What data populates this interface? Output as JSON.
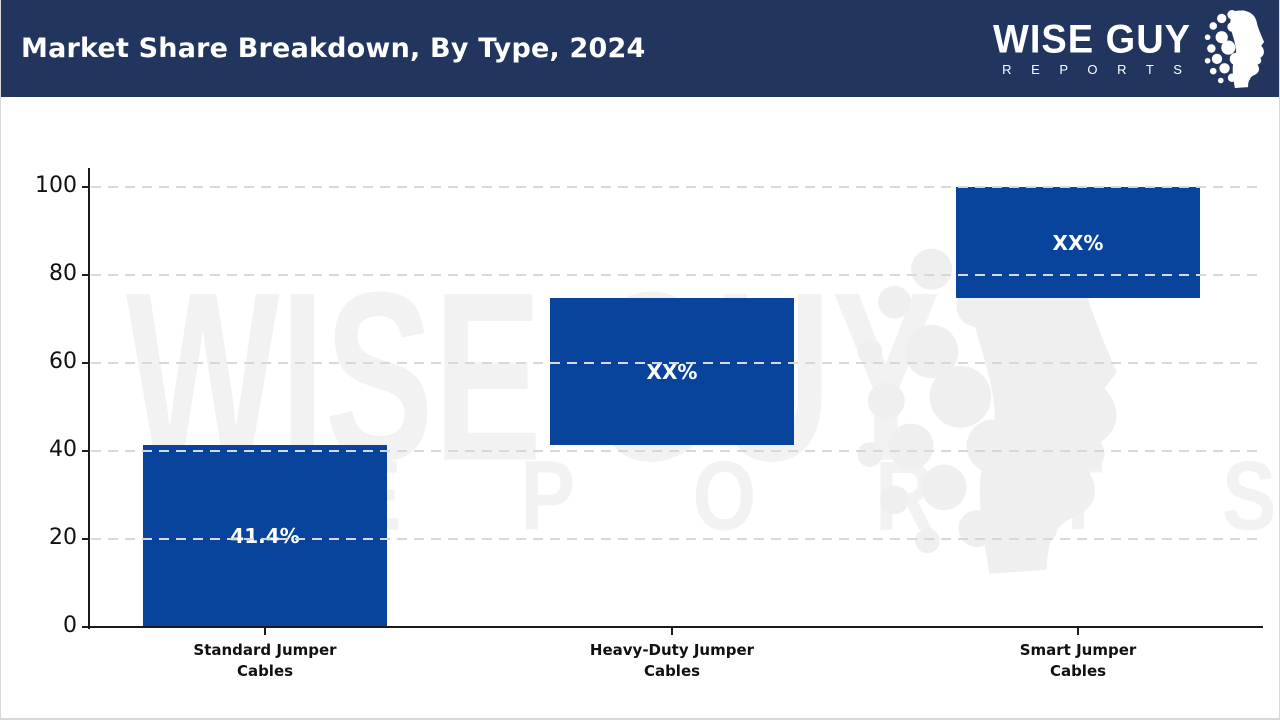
{
  "header": {
    "title": "Market Share Breakdown, By Type, 2024",
    "logo": {
      "line1": "WISE GUY",
      "line2": "R E P O R T S",
      "icon": "dotted-head-profile"
    }
  },
  "watermark": {
    "line1": "WISE GUY",
    "line2": "R E P O R T S",
    "icon": "dotted-head-profile"
  },
  "colors": {
    "header_bg": "#22355e",
    "bar": "#08449b",
    "bar_label": "#ffffff",
    "grid": "#d8d8d8",
    "axis": "#1a1a1a",
    "watermark": "#f2f2f2"
  },
  "chart_data": {
    "type": "bar",
    "variant": "waterfall",
    "title": "Market Share Breakdown, By Type, 2024",
    "categories": [
      {
        "line1": "Standard Jumper",
        "line2": "Cables"
      },
      {
        "line1": "Heavy-Duty Jumper",
        "line2": "Cables"
      },
      {
        "line1": "Smart Jumper",
        "line2": "Cables"
      }
    ],
    "bars": [
      {
        "name": "Standard Jumper Cables",
        "display_label": "41.4%",
        "start": 0,
        "end": 41.4,
        "value": 41.4
      },
      {
        "name": "Heavy-Duty Jumper Cables",
        "display_label": "XX%",
        "start": 41.4,
        "end": 74.7,
        "value": 33.3
      },
      {
        "name": "Smart Jumper Cables",
        "display_label": "XX%",
        "start": 74.7,
        "end": 100,
        "value": 25.3
      }
    ],
    "xlabel": "",
    "ylabel": "",
    "ylim": [
      0,
      100
    ],
    "yticks": [
      "0",
      "20",
      "40",
      "60",
      "80",
      "100"
    ],
    "grid": "horizontal-dashed",
    "legend": "none"
  }
}
